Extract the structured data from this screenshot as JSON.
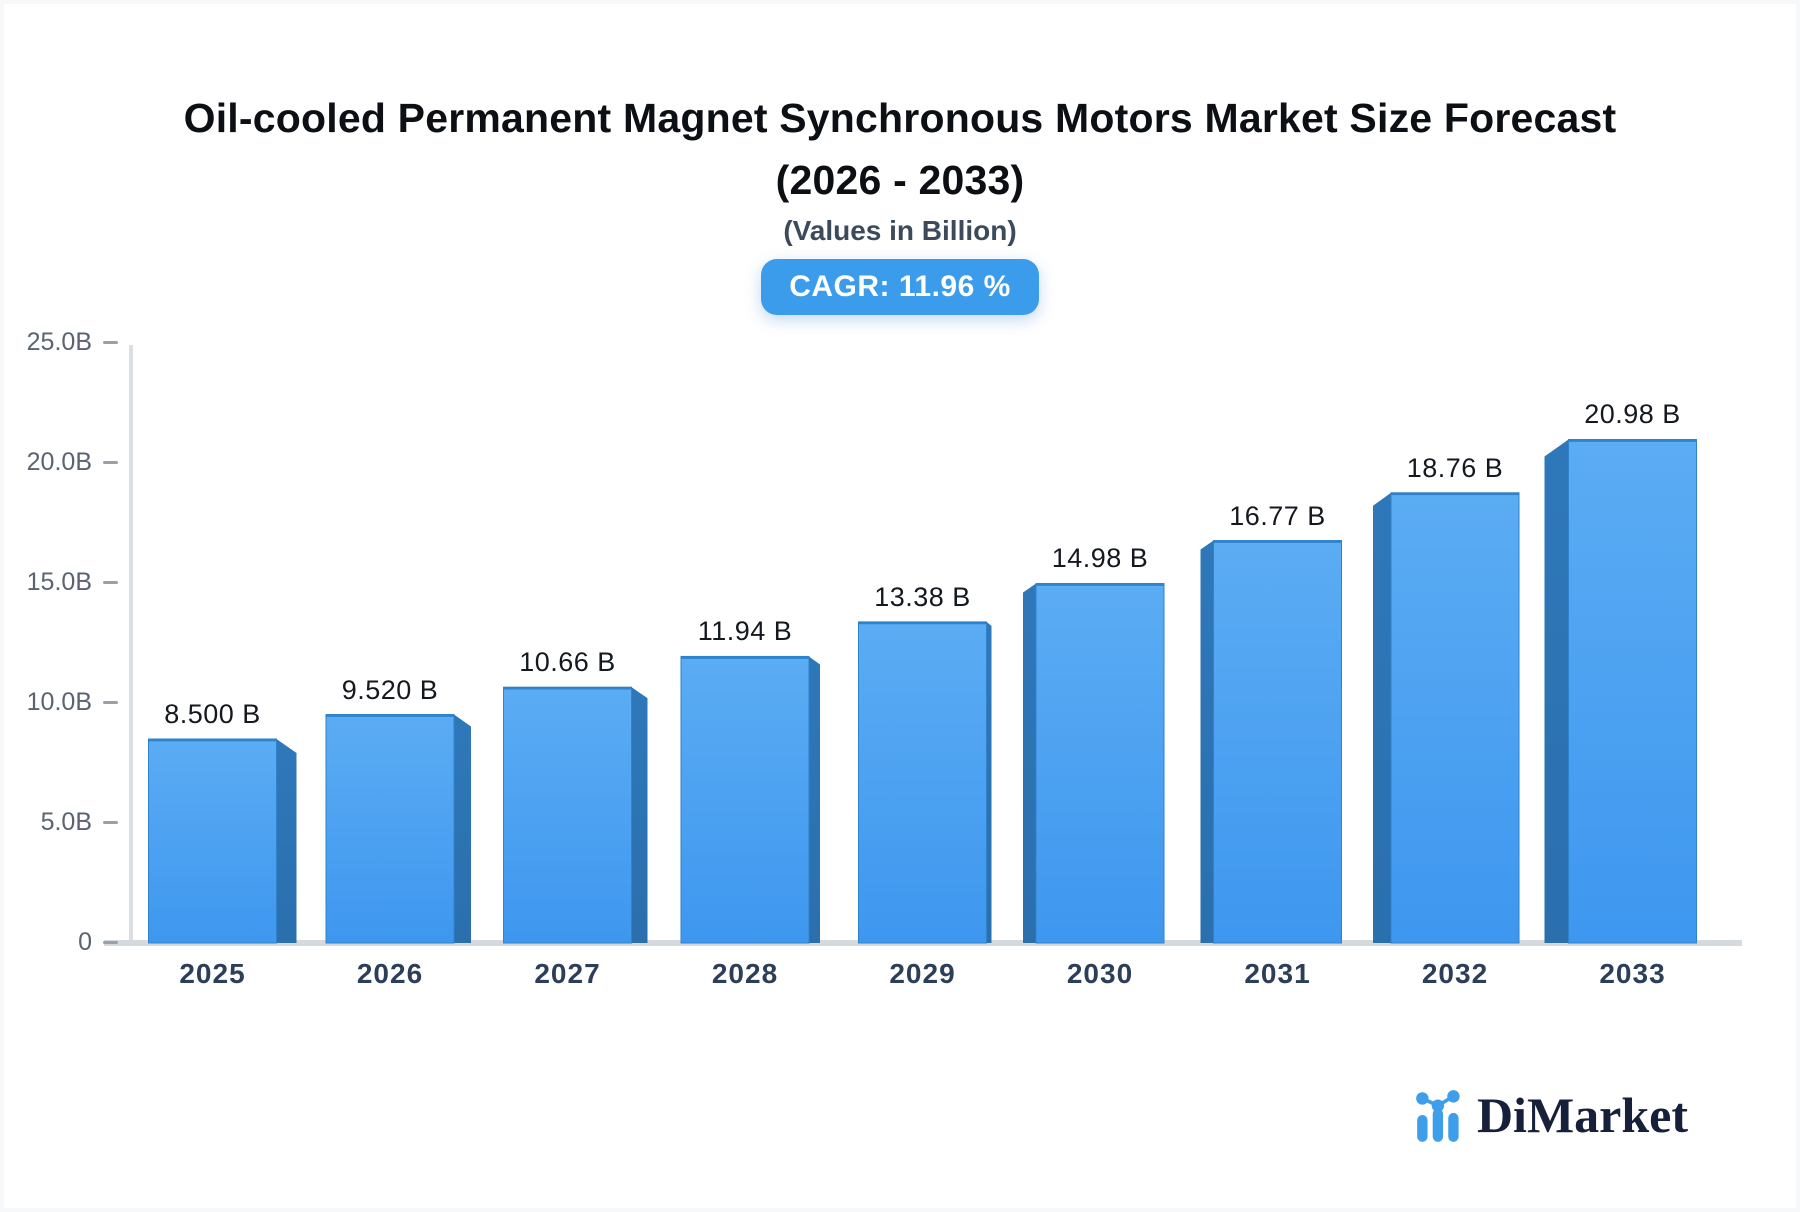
{
  "header": {
    "title": "Oil-cooled Permanent Magnet Synchronous Motors Market Size Forecast (2026 - 2033)",
    "subtitle": "(Values in Billion)",
    "cagr_badge": "CAGR: 11.96 %"
  },
  "brand": {
    "name": "DiMarket"
  },
  "colors": {
    "bar_face_top": "#5BACF3",
    "bar_face_bottom": "#3E97EF",
    "bar_face_edge": "#2F82CC",
    "bar_side": "#2D74B5",
    "badge_bg": "#3B9CEB",
    "axis_line": "#DBDFE4",
    "baseline": "#D5DADE",
    "tick_label": "#5A6370",
    "year_label": "#2D3E58",
    "value_label": "#14191F",
    "logo_blue": "#3F9EE9",
    "logo_text": "#17203A"
  },
  "chart_data": {
    "type": "bar",
    "effect": "3d",
    "title": "Oil-cooled Permanent Magnet Synchronous Motors Market Size Forecast (2026 - 2033)",
    "subtitle": "(Values in Billion)",
    "cagr_percent": 11.96,
    "categories": [
      "2025",
      "2026",
      "2027",
      "2028",
      "2029",
      "2030",
      "2031",
      "2032",
      "2033"
    ],
    "values": [
      8.5,
      9.52,
      10.66,
      11.94,
      13.38,
      14.98,
      16.77,
      18.76,
      20.98
    ],
    "bar_labels": [
      "8.500 B",
      "9.520 B",
      "10.66 B",
      "11.94 B",
      "13.38 B",
      "14.98 B",
      "16.77 B",
      "18.76 B",
      "20.98 B"
    ],
    "ytick_labels": [
      "25.0B",
      "20.0B",
      "15.0B",
      "10.0B",
      "5.0B",
      "0"
    ],
    "ytick_values": [
      25,
      20,
      15,
      10,
      5,
      0
    ],
    "ylim": [
      0,
      25
    ],
    "xlabel": "",
    "ylabel": "",
    "grid": false,
    "legend": false
  }
}
